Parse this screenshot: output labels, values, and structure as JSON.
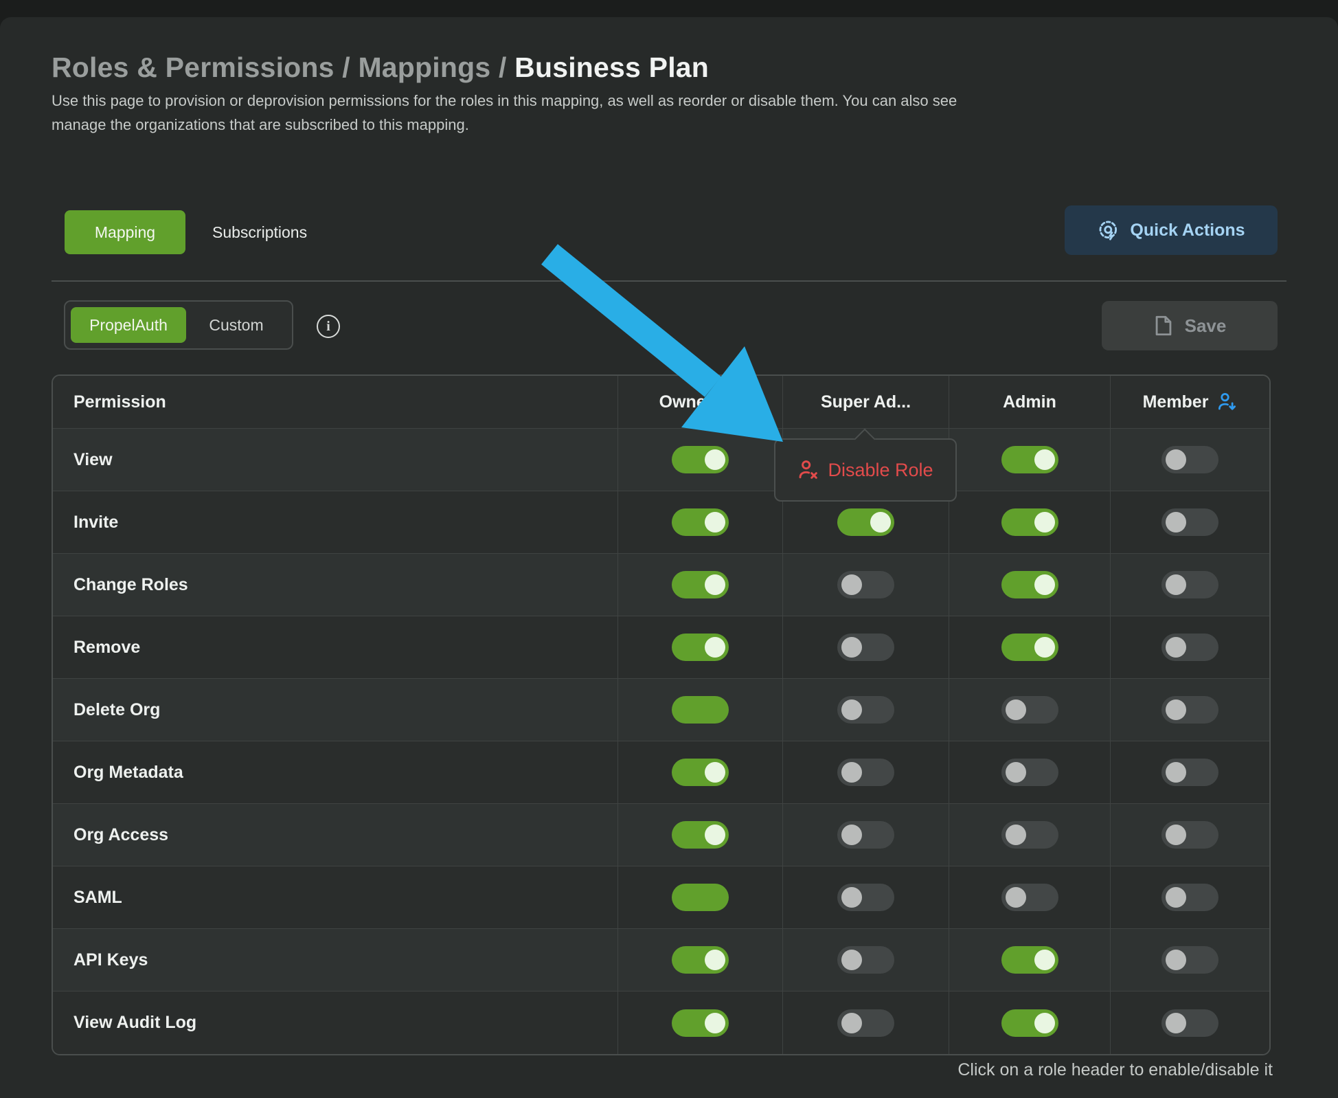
{
  "header": {
    "breadcrumb_prefix": "Roles & Permissions / Mappings / ",
    "breadcrumb_current": "Business Plan",
    "subtitle_line1": "Use this page to provision or deprovision permissions for the roles in this mapping, as well as reorder or disable them. You can also see",
    "subtitle_line2": "manage the organizations that are subscribed to this mapping."
  },
  "tabs": {
    "mapping": "Mapping",
    "subscriptions": "Subscriptions"
  },
  "toolbar": {
    "quick_actions_label": "Quick Actions",
    "save_label": "Save",
    "segmented": {
      "propelauth": "PropelAuth",
      "custom": "Custom"
    },
    "icons": {
      "quick_actions": "gear-bolt-icon",
      "save": "document-icon",
      "info": "info-icon"
    }
  },
  "info_glyph": "i",
  "table": {
    "columns": [
      "Permission",
      "Owner",
      "Super Ad...",
      "Admin",
      "Member"
    ],
    "header_icons": {
      "owner": "user-green-icon",
      "member": "user-down-blue-icon"
    },
    "rows": [
      {
        "label": "View",
        "owner": "on",
        "super_admin": "hidden",
        "admin": "on",
        "member": "off"
      },
      {
        "label": "Invite",
        "owner": "on",
        "super_admin": "on",
        "admin": "on",
        "member": "off"
      },
      {
        "label": "Change Roles",
        "owner": "on",
        "super_admin": "off",
        "admin": "on",
        "member": "off"
      },
      {
        "label": "Remove",
        "owner": "on",
        "super_admin": "off",
        "admin": "on",
        "member": "off"
      },
      {
        "label": "Delete Org",
        "owner": "locked",
        "super_admin": "off",
        "admin": "off",
        "member": "off"
      },
      {
        "label": "Org Metadata",
        "owner": "on",
        "super_admin": "off",
        "admin": "off",
        "member": "off"
      },
      {
        "label": "Org Access",
        "owner": "on",
        "super_admin": "off",
        "admin": "off",
        "member": "off"
      },
      {
        "label": "SAML",
        "owner": "locked",
        "super_admin": "off",
        "admin": "off",
        "member": "off"
      },
      {
        "label": "API Keys",
        "owner": "on",
        "super_admin": "off",
        "admin": "on",
        "member": "off"
      },
      {
        "label": "View Audit Log",
        "owner": "on",
        "super_admin": "off",
        "admin": "on",
        "member": "off"
      }
    ]
  },
  "tooltip": {
    "label": "Disable Role",
    "icon": "user-x-red-icon"
  },
  "footer": {
    "hint": "Click on a role header to enable/disable it"
  },
  "colors": {
    "accent_green": "#61a02c",
    "accent_blue_button_bg": "#24384a",
    "accent_blue_text": "#a5d3f3",
    "arrow_blue": "#29aee6",
    "danger_red": "#e24b4b",
    "toggle_off_track": "#434747",
    "card_bg": "#272a29"
  }
}
